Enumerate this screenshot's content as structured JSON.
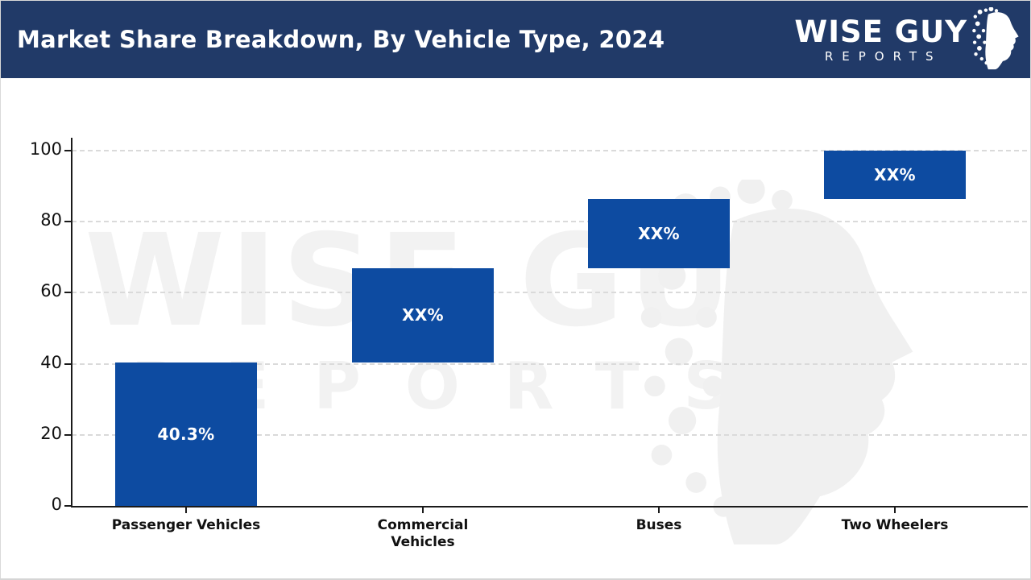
{
  "header": {
    "title": "Market Share Breakdown, By Vehicle Type, 2024",
    "logo": {
      "line1": "WISE GUY",
      "line2": "REPORTS"
    }
  },
  "watermark": {
    "line1": "WISE GUY",
    "line2": "REPORTS"
  },
  "colors": {
    "header_bg": "#213A68",
    "bar": "#0D4BA1",
    "grid": "#DADADA",
    "axis": "#1A1A1A",
    "bar_label": "#FFFFFF",
    "watermark": "#F2F2F2",
    "tick_label": "#111111"
  },
  "chart_data": {
    "type": "bar",
    "subtype": "waterfall",
    "title": "Market Share Breakdown, By Vehicle Type, 2024",
    "categories": [
      [
        "Passenger Vehicles"
      ],
      [
        "Commercial",
        "Vehicles"
      ],
      [
        "Buses"
      ],
      [
        "Two Wheelers"
      ]
    ],
    "segments": [
      {
        "category": "Passenger Vehicles",
        "start": 0,
        "end": 40.3,
        "label": "40.3%"
      },
      {
        "category": "Commercial Vehicles",
        "start": 40.3,
        "end": 67,
        "label": "XX%"
      },
      {
        "category": "Buses",
        "start": 67,
        "end": 86.5,
        "label": "XX%"
      },
      {
        "category": "Two Wheelers",
        "start": 86.5,
        "end": 100,
        "label": "XX%"
      }
    ],
    "yticks": [
      0,
      20,
      40,
      60,
      80,
      100
    ],
    "ylim": [
      0,
      100
    ],
    "xlabel": "",
    "ylabel": "",
    "grid": "horizontal-dashed",
    "legend": "none"
  }
}
